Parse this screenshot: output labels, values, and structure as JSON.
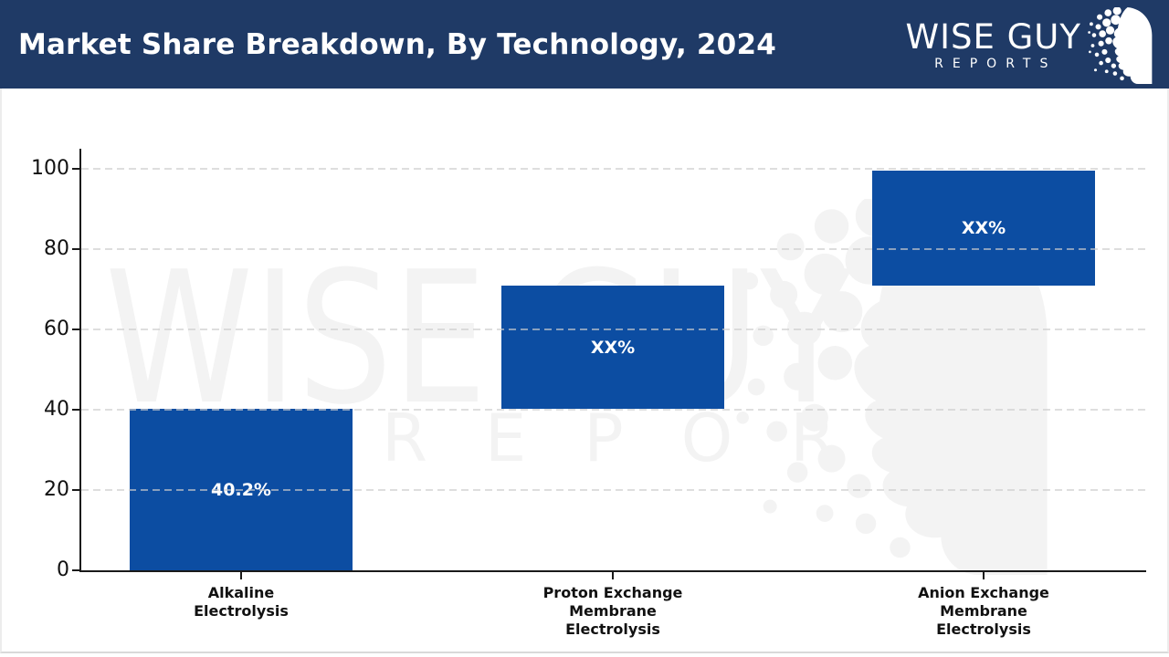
{
  "header": {
    "title": "Market Share Breakdown, By Technology, 2024",
    "logo": {
      "wordmark": "WISE GUY",
      "subtitle": "REPORTS"
    }
  },
  "watermark": {
    "wordmark": "WISE GUY",
    "subtitle": "R E P O R T S"
  },
  "chart_data": {
    "type": "bar",
    "subtype": "floating-segment-waterfall",
    "title": "Market Share Breakdown, By Technology, 2024",
    "xlabel": "",
    "ylabel": "",
    "ylim": [
      0,
      105
    ],
    "yticks": [
      0,
      20,
      40,
      60,
      80,
      100
    ],
    "grid": "horizontal-dashed",
    "legend": "none",
    "bar_color": "#0c4da2",
    "value_label_color": "#ffffff",
    "categories": [
      [
        "Alkaline",
        "Electrolysis"
      ],
      [
        "Proton Exchange",
        "Membrane",
        "Electrolysis"
      ],
      [
        "Anion Exchange",
        "Membrane",
        "Electrolysis"
      ]
    ],
    "bars": [
      {
        "label": "40.2%",
        "start": 0,
        "end": 40.2
      },
      {
        "label": "XX%",
        "start": 40.2,
        "end": 70.9
      },
      {
        "label": "XX%",
        "start": 70.9,
        "end": 99.5
      }
    ]
  },
  "colors": {
    "header_bg": "#1f3a66",
    "bar": "#0c4da2",
    "grid": "#d9d9d9",
    "axis": "#1a1a1a",
    "watermark": "#f3f3f3"
  }
}
